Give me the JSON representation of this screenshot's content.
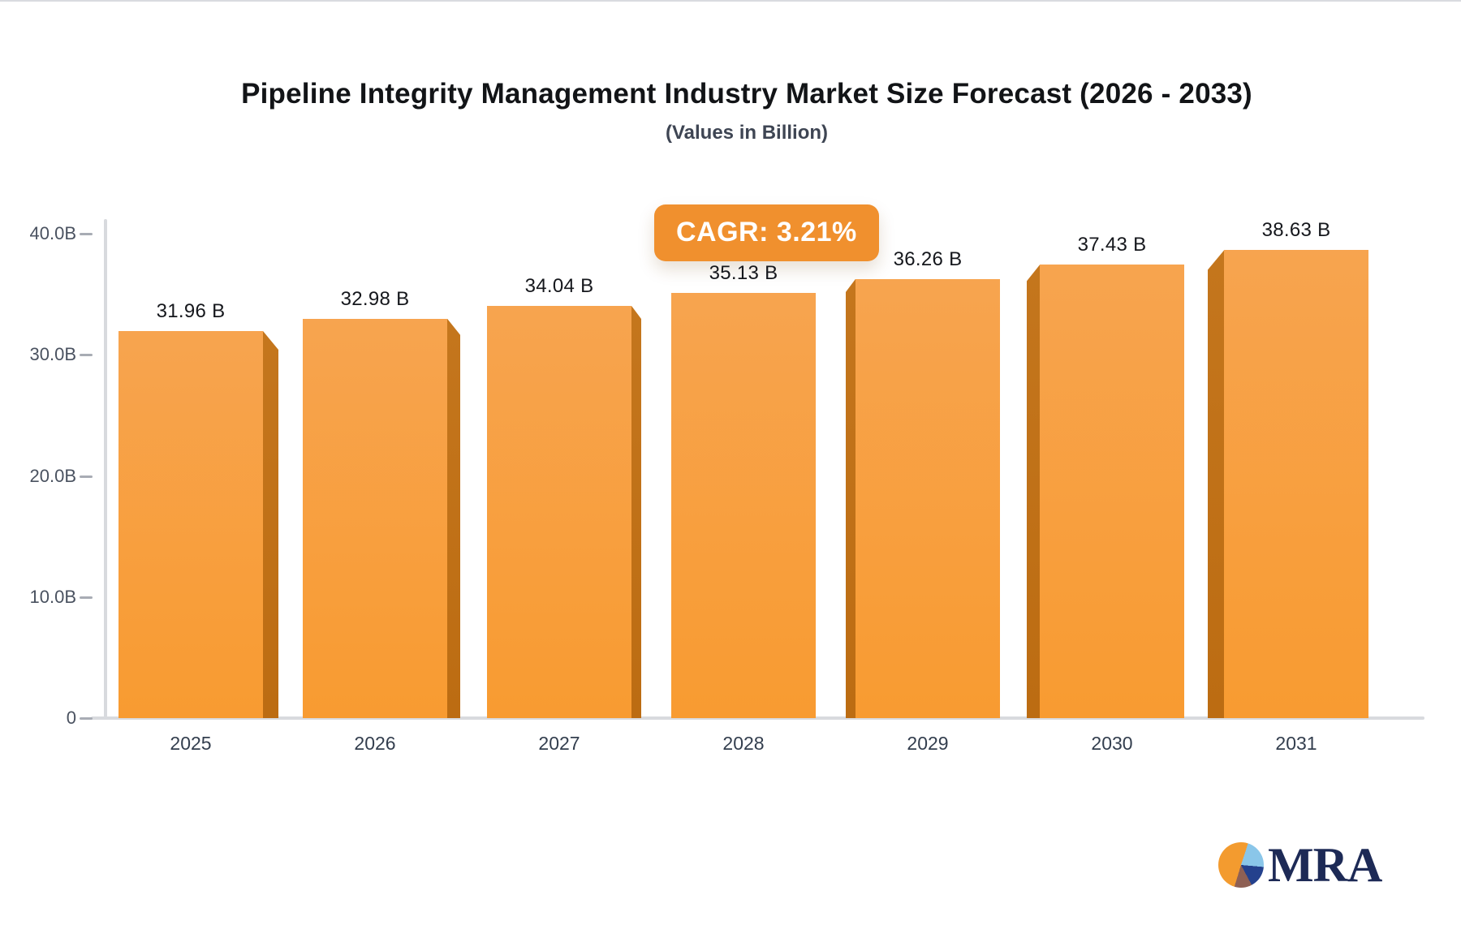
{
  "header": {
    "title": "Pipeline Integrity Management Industry Market Size Forecast (2026 - 2033)",
    "subtitle": "(Values in Billion)"
  },
  "badge": {
    "label": "CAGR: 3.21%",
    "bg_color": "#F0902E",
    "text_color": "#FFFFFF"
  },
  "chart_data": {
    "type": "bar",
    "title": "Pipeline Integrity Management Industry Market Size Forecast (2026 - 2033)",
    "subtitle": "(Values in Billion)",
    "categories": [
      "2025",
      "2026",
      "2027",
      "2028",
      "2029",
      "2030",
      "2031"
    ],
    "values": [
      31.96,
      32.98,
      34.04,
      35.13,
      36.26,
      37.43,
      38.63
    ],
    "value_labels": [
      "31.96 B",
      "32.98 B",
      "34.04 B",
      "35.13 B",
      "36.26 B",
      "37.43 B",
      "38.63 B"
    ],
    "xlabel": "",
    "ylabel": "",
    "ylim": [
      0,
      40
    ],
    "yticks": [
      {
        "value": 0,
        "label": "0"
      },
      {
        "value": 10,
        "label": "10.0B"
      },
      {
        "value": 20,
        "label": "20.0B"
      },
      {
        "value": 30,
        "label": "30.0B"
      },
      {
        "value": 40,
        "label": "40.0B"
      }
    ],
    "grid": false,
    "legend": false,
    "annotation": "CAGR: 3.21%",
    "bar_color_top": "#F7A44F",
    "bar_color_bottom": "#F89B31",
    "bar_side_color": "#C1701A",
    "side_widths": [
      19,
      16,
      12,
      0,
      12,
      16,
      20
    ],
    "axis_color": "#D8DADE"
  },
  "logo": {
    "text": "MRA",
    "text_color": "#1D2A56",
    "pie_segments": [
      {
        "color": "#F39B2F",
        "from": 0,
        "to": 18
      },
      {
        "color": "#8AC6E9",
        "from": 18,
        "to": 95
      },
      {
        "color": "#24418D",
        "from": 95,
        "to": 152
      },
      {
        "color": "#8E6054",
        "from": 152,
        "to": 197
      },
      {
        "color": "#F39B2F",
        "from": 197,
        "to": 360
      }
    ]
  }
}
